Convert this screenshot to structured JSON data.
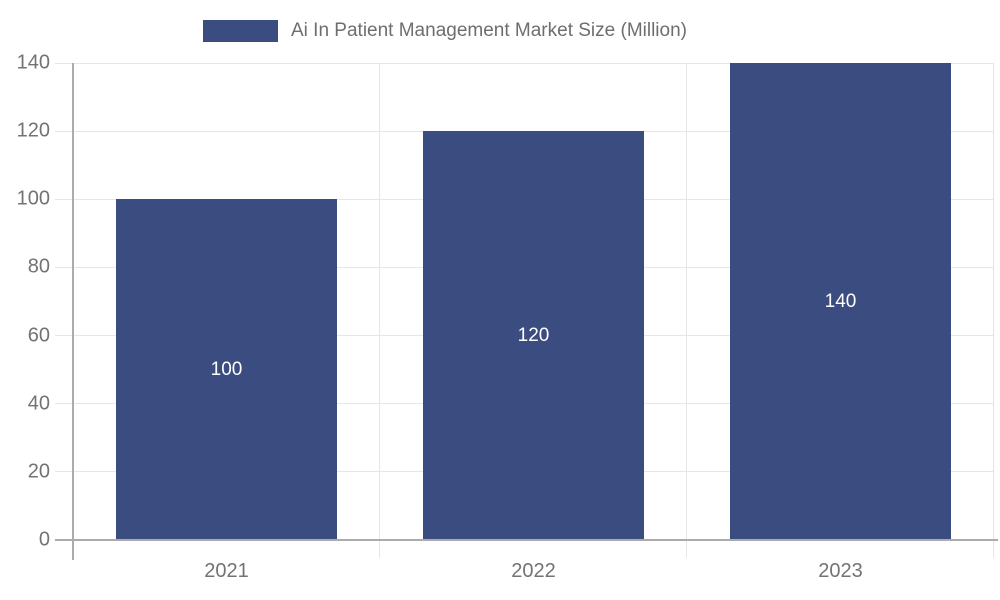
{
  "chart_data": {
    "type": "bar",
    "title": "Ai In Patient Management Market Size (Million)",
    "categories": [
      "2021",
      "2022",
      "2023"
    ],
    "values": [
      100,
      120,
      140
    ],
    "series": [
      {
        "name": "Ai In Patient Management Market Size (Million)",
        "values": [
          100,
          120,
          140
        ]
      }
    ],
    "xlabel": "",
    "ylabel": "",
    "ylim": [
      0,
      140
    ],
    "yticks": [
      0,
      20,
      40,
      60,
      80,
      100,
      120,
      140
    ],
    "grid": true,
    "legend_position": "top",
    "bar_labels": [
      "100",
      "120",
      "140"
    ],
    "colors": {
      "bar": "#3a4c80",
      "bar_label": "#ffffff",
      "gridline": "#e6e6e6",
      "axis_line": "#ababab",
      "tick_text": "#737373",
      "legend_text": "#6e6e6e",
      "background": "#ffffff"
    }
  }
}
